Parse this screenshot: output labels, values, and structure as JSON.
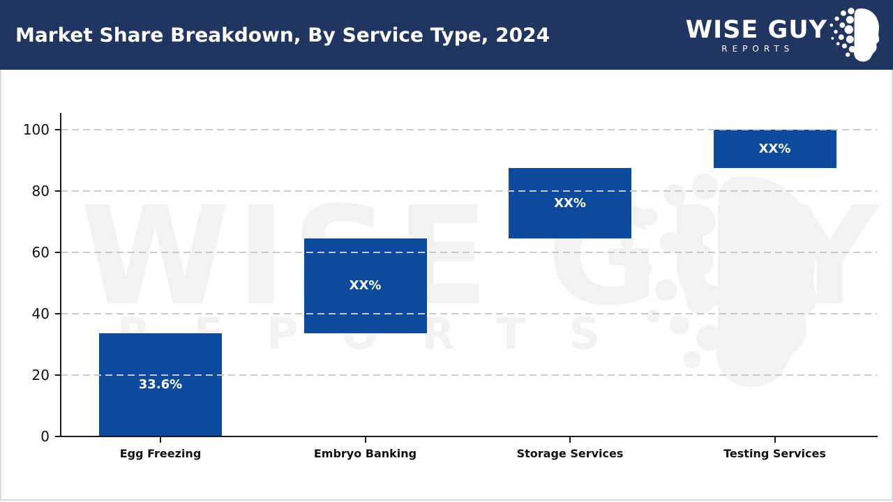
{
  "header": {
    "title": "Market Share Breakdown, By Service Type, 2024",
    "logo": {
      "line1": "WISE GUY",
      "line2": "REPORTS"
    }
  },
  "watermark": {
    "line1": "WISE GUY",
    "line2": "REPORTS"
  },
  "colors": {
    "header_bg": "#20355f",
    "bar": "#0d4a9e",
    "bar_label": "#ffffff",
    "axis": "#1a1a1a",
    "grid": "#c9c9c9",
    "watermark": "#f2f2f2"
  },
  "chart_data": {
    "type": "bar",
    "subtype": "waterfall-segments",
    "title": "Market Share Breakdown, By Service Type, 2024",
    "categories": [
      "Egg Freezing",
      "Embryo Banking",
      "Storage Services",
      "Testing Services"
    ],
    "segments": [
      {
        "category": "Egg Freezing",
        "start": 0,
        "end": 33.6,
        "label": "33.6%"
      },
      {
        "category": "Embryo Banking",
        "start": 33.6,
        "end": 64.5,
        "label": "XX%"
      },
      {
        "category": "Storage Services",
        "start": 64.5,
        "end": 87.5,
        "label": "XX%"
      },
      {
        "category": "Testing Services",
        "start": 87.5,
        "end": 100,
        "label": "XX%"
      }
    ],
    "yticks": [
      0,
      20,
      40,
      60,
      80,
      100
    ],
    "ylim": [
      0,
      100
    ],
    "xlabel": "",
    "ylabel": "",
    "grid": "dashed horizontal, drawn over bars",
    "legend": "none",
    "bar_color": "#0d4a9e",
    "label_color": "#ffffff"
  }
}
